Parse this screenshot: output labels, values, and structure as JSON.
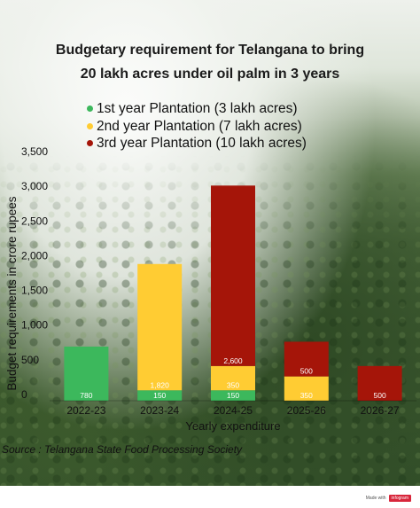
{
  "title_line1": "Budgetary requirement for Telangana to bring",
  "title_line2": "20 lakh acres under oil palm in 3 years",
  "source": "Source : Telangana State Food Processing Society",
  "footer": {
    "made_with": "Made with",
    "brand": "infogram"
  },
  "colors": {
    "series1": "#3cb85c",
    "series2": "#ffcc33",
    "series3": "#a51509",
    "brand": "#d8263b"
  },
  "chart_data": {
    "type": "bar",
    "stacked": true,
    "categories": [
      "2022-23",
      "2023-24",
      "2024-25",
      "2025-26",
      "2026-27"
    ],
    "series": [
      {
        "name": "1st year Plantation (3 lakh acres)",
        "values": [
          780,
          150,
          150,
          0,
          0
        ]
      },
      {
        "name": "2nd year Plantation (7 lakh acres)",
        "values": [
          0,
          1820,
          350,
          350,
          0
        ]
      },
      {
        "name": "3rd year Plantation (10 lakh acres)",
        "values": [
          0,
          0,
          2600,
          500,
          500
        ]
      }
    ],
    "data_labels": [
      [
        "780",
        "150",
        "150",
        "",
        ""
      ],
      [
        "",
        "1,820",
        "350",
        "350",
        ""
      ],
      [
        "",
        "",
        "2,600",
        "500",
        "500"
      ]
    ],
    "yticks": [
      0,
      500,
      1000,
      1500,
      2000,
      2500,
      3000,
      3500
    ],
    "ytick_labels": [
      "0",
      "500",
      "1,000",
      "1,500",
      "2,000",
      "2,500",
      "3,000",
      "3,500"
    ],
    "ylim": [
      0,
      3500
    ],
    "xlabel": "Yearly expenditure",
    "ylabel": "Budget requirements in crore rupees",
    "legend_position": "top",
    "grid": false
  }
}
